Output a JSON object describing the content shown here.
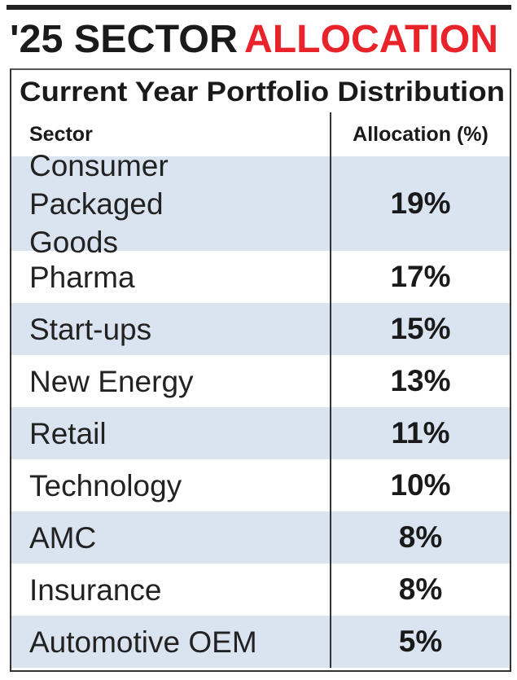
{
  "header": {
    "title_prefix": "'25 SECTOR",
    "title_highlight": "ALLOCATION"
  },
  "table": {
    "title": "Current Year Portfolio Distribution",
    "columns": [
      "Sector",
      "Allocation (%)"
    ],
    "rows": [
      [
        "Consumer Packaged Goods",
        "19%"
      ],
      [
        "Pharma",
        "17%"
      ],
      [
        "Start-ups",
        "15%"
      ],
      [
        "New Energy",
        "13%"
      ],
      [
        "Retail",
        "11%"
      ],
      [
        "Technology",
        "10%"
      ],
      [
        "AMC",
        "8%"
      ],
      [
        "Insurance",
        "8%"
      ],
      [
        "Automotive OEM",
        "5%"
      ]
    ]
  }
}
